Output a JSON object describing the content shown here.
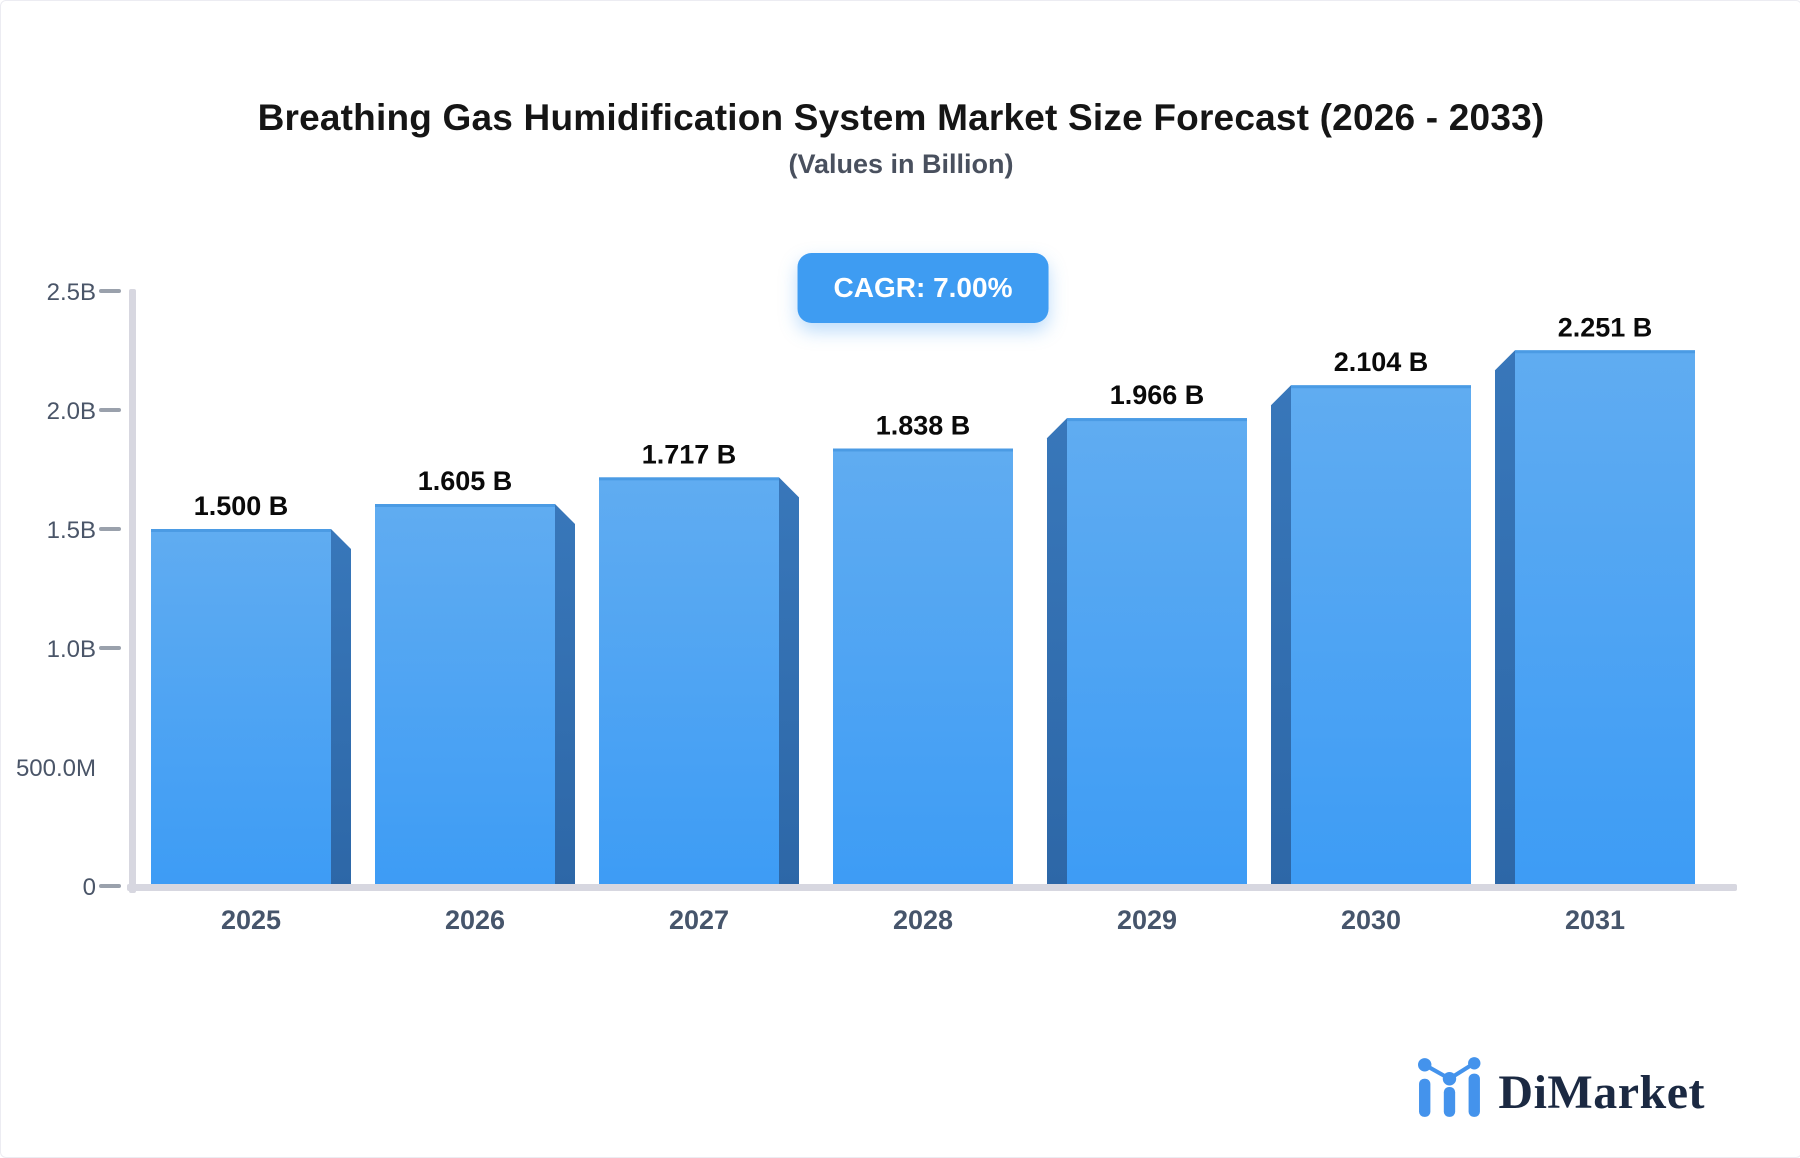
{
  "header": {
    "title": "Breathing Gas Humidification System Market Size Forecast (2026 - 2033)",
    "subtitle": "(Values in Billion)"
  },
  "badge": {
    "label": "CAGR: 7.00%",
    "bg_color": "#3e9cf2"
  },
  "chart_data": {
    "type": "bar",
    "title": "Breathing Gas Humidification System Market Size Forecast (2026 - 2033)",
    "subtitle": "(Values in Billion)",
    "categories": [
      "2025",
      "2026",
      "2027",
      "2028",
      "2029",
      "2030",
      "2031"
    ],
    "values": [
      1.5,
      1.605,
      1.717,
      1.838,
      1.966,
      2.104,
      2.251
    ],
    "value_labels": [
      "1.500 B",
      "1.605 B",
      "1.717 B",
      "1.838 B",
      "1.966 B",
      "2.104 B",
      "2.251 B"
    ],
    "unit": "B",
    "xlabel": "",
    "ylabel": "",
    "ylim": [
      0,
      2.5
    ],
    "grid": false,
    "legend": "none",
    "yticks": [
      {
        "label": "2.5B",
        "value": 2.5,
        "dash": true
      },
      {
        "label": "2.0B",
        "value": 2.0,
        "dash": true
      },
      {
        "label": "1.5B",
        "value": 1.5,
        "dash": true
      },
      {
        "label": "1.0B",
        "value": 1.0,
        "dash": true
      },
      {
        "label": "500.0M",
        "value": 0.5,
        "dash": false
      },
      {
        "label": "0",
        "value": 0.0,
        "dash": true
      }
    ],
    "bar_style": {
      "face_top_color": "#60acf1",
      "face_bottom_color": "#3d9cf5",
      "face_edge_color": "#4b9be4",
      "side_top_color": "#3877ba",
      "side_bottom_color": "#2d67a7",
      "axis_color": "#d7d7e0",
      "tick_dash_color": "#9aa1ac"
    }
  },
  "logo": {
    "text": "DiMarket",
    "icon": "bar-line-chart-icon",
    "accent": "#4493ec",
    "text_color": "#1b2942"
  }
}
